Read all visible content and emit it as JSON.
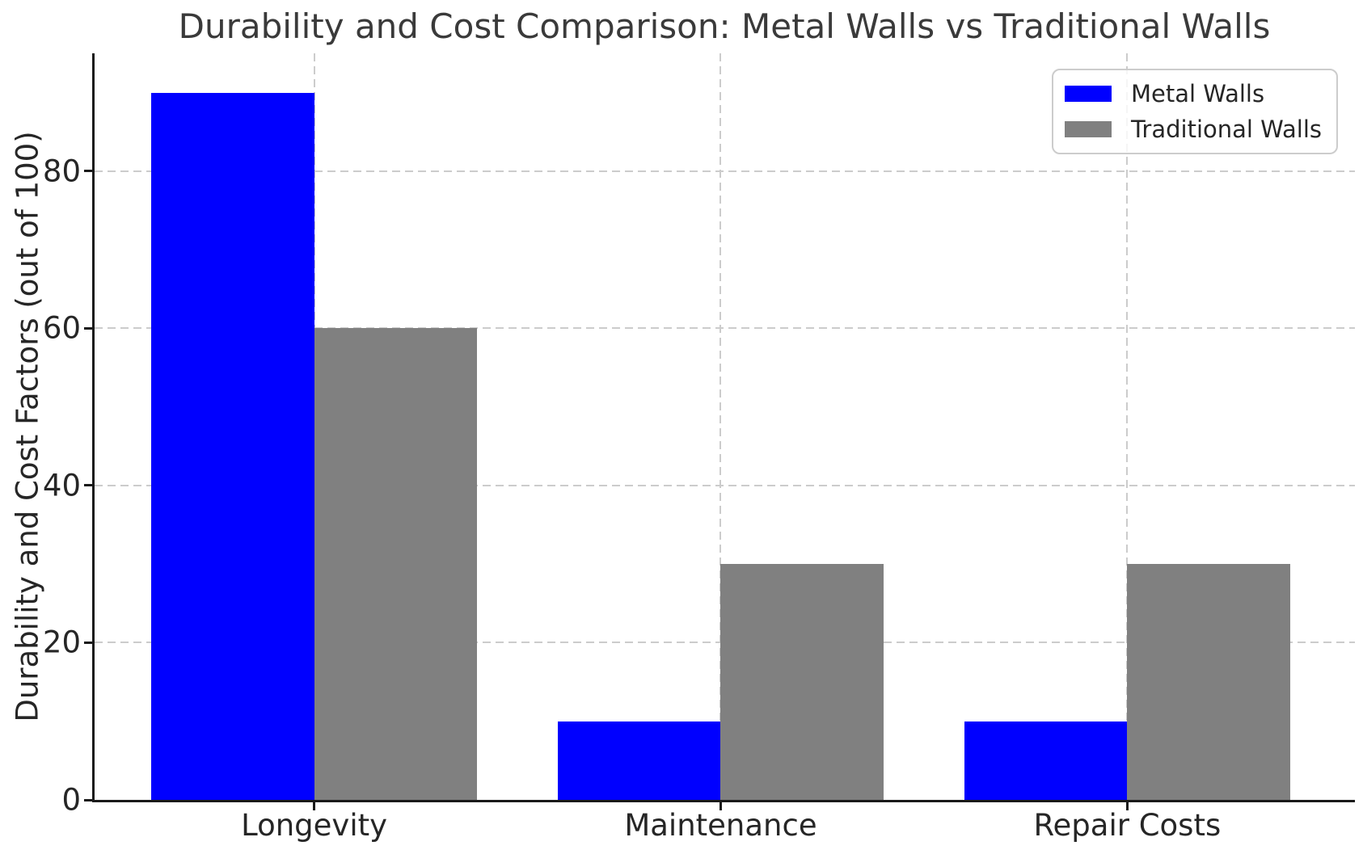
{
  "title": "Durability and Cost Comparison: Metal Walls vs Traditional Walls",
  "chart_data": {
    "type": "bar",
    "title": "Durability and Cost Comparison: Metal Walls vs Traditional Walls",
    "categories": [
      "Longevity",
      "Maintenance",
      "Repair Costs"
    ],
    "series": [
      {
        "name": "Metal Walls",
        "color": "#0000ff",
        "values": [
          90,
          10,
          10
        ]
      },
      {
        "name": "Traditional Walls",
        "color": "#808080",
        "values": [
          60,
          30,
          30
        ]
      }
    ],
    "xlabel": "",
    "ylabel": "Durability and Cost Factors (out of 100)",
    "ylim": [
      0,
      95
    ],
    "yticks": [
      0,
      20,
      40,
      60,
      80
    ],
    "xlim": [
      -0.54,
      2.56
    ],
    "bar_width": 0.4,
    "grid": true,
    "grid_style": "dashed",
    "legend_position": "upper right"
  },
  "colors": {
    "metal_walls": "#0000ff",
    "traditional_walls": "#808080",
    "grid": "#cccccc",
    "axis": "#1a1a1a",
    "text": "#262626",
    "legend_border": "#cccccc"
  }
}
